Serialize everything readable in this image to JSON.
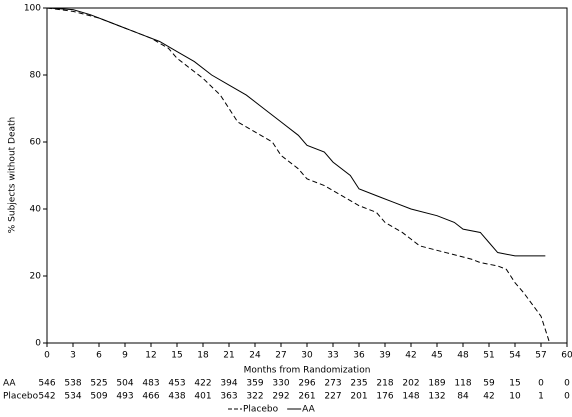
{
  "chart_data": {
    "type": "line",
    "step": true,
    "xlabel": "Months from Randomization",
    "ylabel": "% Subjects without Death",
    "xlim": [
      0,
      60
    ],
    "xticks": [
      0,
      3,
      6,
      9,
      12,
      15,
      18,
      21,
      24,
      27,
      30,
      33,
      36,
      39,
      42,
      45,
      48,
      51,
      54,
      57,
      60
    ],
    "ylim": [
      0,
      100
    ],
    "yticks": [
      0,
      20,
      40,
      60,
      80,
      100
    ],
    "legend": "bottom",
    "series": [
      {
        "name": "Placebo",
        "color": "#000000",
        "dash": true,
        "x": [
          0,
          3,
          6,
          9,
          12,
          14,
          15,
          16,
          18,
          20,
          21,
          22,
          24,
          26,
          27,
          29,
          30,
          32,
          34,
          36,
          38,
          39,
          41,
          42,
          43,
          46,
          49,
          50,
          52,
          53,
          54,
          55,
          57,
          58
        ],
        "values": [
          100,
          99,
          97,
          94,
          91,
          88,
          85,
          83,
          79,
          74,
          70,
          66,
          63,
          60,
          56,
          52,
          49,
          47,
          44,
          41,
          39,
          36,
          33,
          31,
          29,
          27,
          25,
          24,
          23,
          22,
          18,
          15,
          8,
          0
        ]
      },
      {
        "name": "AA",
        "color": "#000000",
        "dash": false,
        "x": [
          0,
          3,
          5,
          7,
          9,
          11,
          13,
          15,
          17,
          19,
          21,
          23,
          25,
          27,
          29,
          30,
          32,
          33,
          35,
          36,
          38,
          40,
          42,
          45,
          47,
          48,
          50,
          51,
          52,
          54,
          57.5
        ],
        "values": [
          100,
          99.5,
          98,
          96,
          94,
          92,
          90,
          87,
          84,
          80,
          77,
          74,
          70,
          66,
          62,
          59,
          57,
          54,
          50,
          46,
          44,
          42,
          40,
          38,
          36,
          34,
          33,
          30,
          27,
          26,
          26
        ]
      }
    ],
    "risk_table": [
      {
        "label": "AA",
        "counts": [
          "546",
          "538",
          "525",
          "504",
          "483",
          "453",
          "422",
          "394",
          "359",
          "330",
          "296",
          "273",
          "235",
          "218",
          "202",
          "189",
          "118",
          "59",
          "15",
          "0",
          "0"
        ]
      },
      {
        "label": "Placebo",
        "counts": [
          "542",
          "534",
          "509",
          "493",
          "466",
          "438",
          "401",
          "363",
          "322",
          "292",
          "261",
          "227",
          "201",
          "176",
          "148",
          "132",
          "84",
          "42",
          "10",
          "1",
          "0"
        ]
      }
    ]
  }
}
